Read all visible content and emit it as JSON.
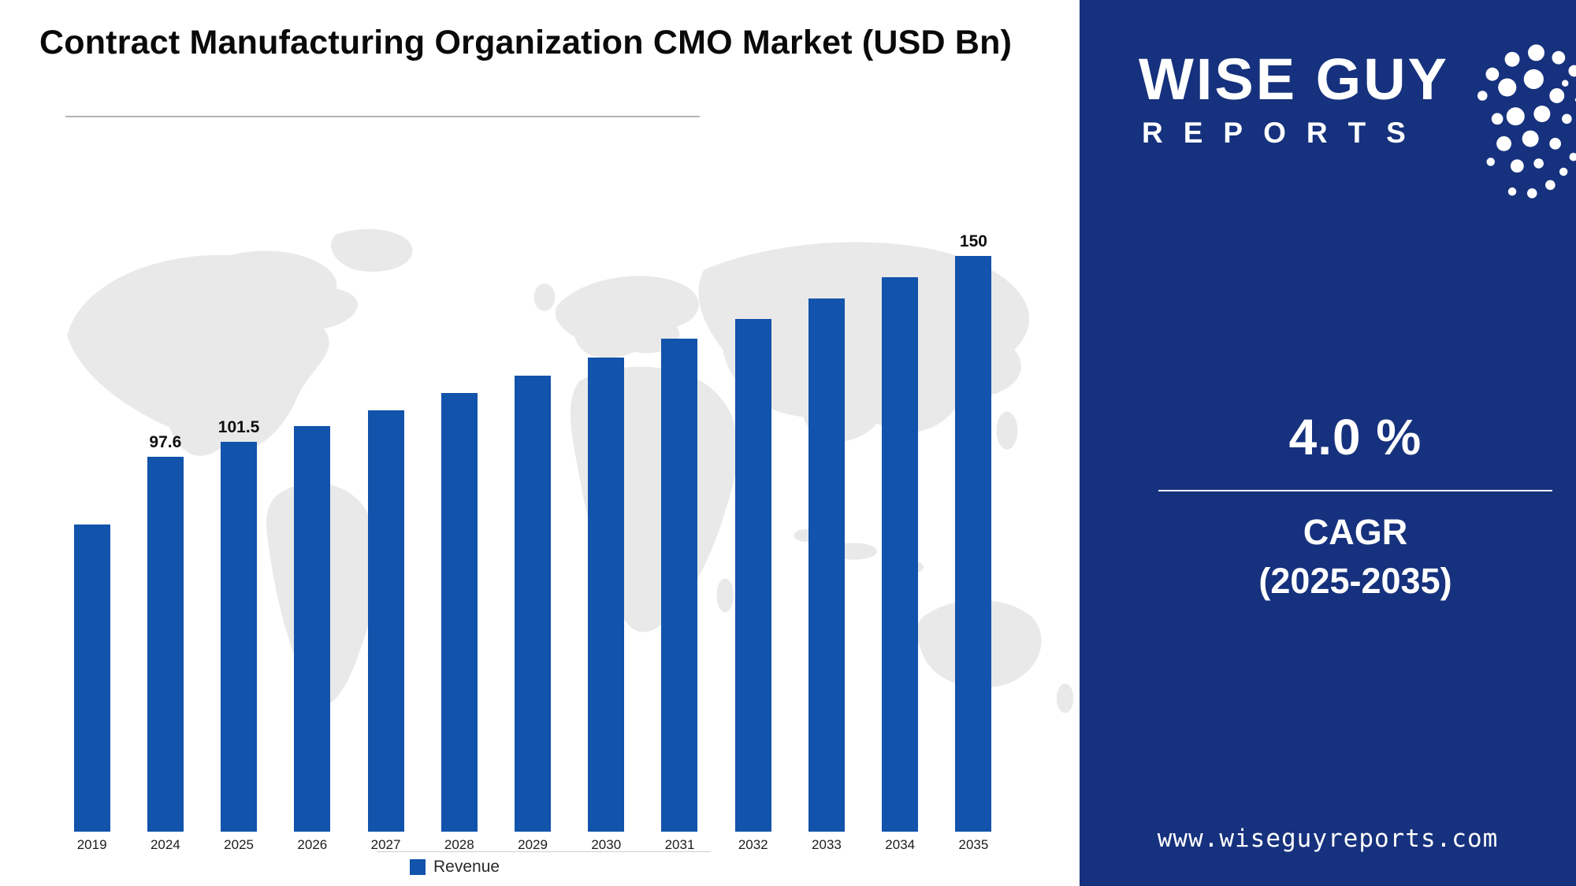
{
  "title": "Contract Manufacturing Organization CMO Market (USD Bn)",
  "chart_data": {
    "type": "bar",
    "title": "Contract Manufacturing Organization CMO Market (USD Bn)",
    "categories": [
      "2019",
      "2024",
      "2025",
      "2026",
      "2027",
      "2028",
      "2029",
      "2030",
      "2031",
      "2032",
      "2033",
      "2034",
      "2035"
    ],
    "values": [
      80,
      97.6,
      101.5,
      105.6,
      109.8,
      114.2,
      118.8,
      123.5,
      128.5,
      133.6,
      138.9,
      144.5,
      150
    ],
    "point_labels": [
      "",
      "97.6",
      "101.5",
      "",
      "",
      "",
      "",
      "",
      "",
      "",
      "",
      "",
      "150"
    ],
    "series_name": "Revenue",
    "bar_color": "#1253ab",
    "xlabel": "",
    "ylabel": "",
    "ylim": [
      0,
      160
    ],
    "grid": false,
    "legend_position": "bottom"
  },
  "panel": {
    "logo_line1": "WISE GUY",
    "logo_line2": "REPORTS",
    "cagr_value": "4.0 %",
    "cagr_label": "CAGR",
    "cagr_range": "(2025-2035)",
    "website": "www.wiseguyreports.com",
    "background_color": "#16317d"
  }
}
